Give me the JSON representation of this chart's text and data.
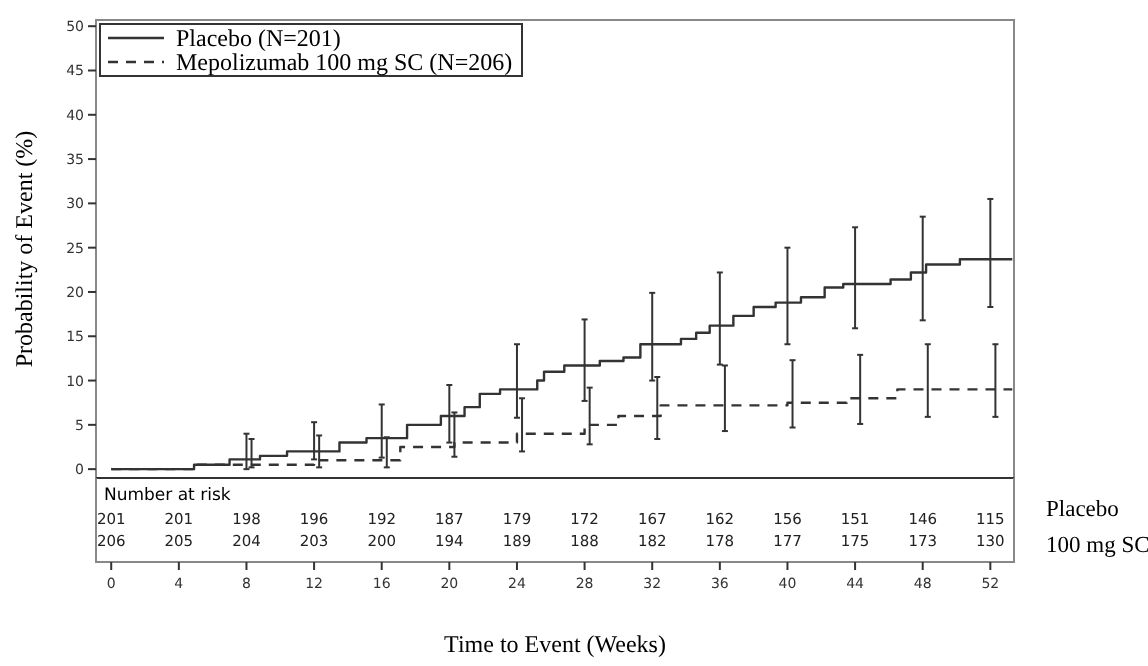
{
  "chart_data": [
    {
      "type": "step",
      "xlabel": "Time to Event (Weeks)",
      "ylabel": "Probability of Event (%)",
      "xlim": [
        -0.9,
        53.4
      ],
      "ylim": [
        -1,
        50.7
      ],
      "xticks": [
        0,
        4,
        8,
        12,
        16,
        20,
        24,
        28,
        32,
        36,
        40,
        44,
        48,
        52
      ],
      "yticks": [
        0,
        5,
        10,
        15,
        20,
        25,
        30,
        35,
        40,
        45,
        50
      ],
      "grid": false,
      "legend": "top left",
      "series": [
        {
          "name": "Placebo (N=201)",
          "color": "#333333",
          "line_style": "solid",
          "x": [
            0,
            4.9,
            7.0,
            8,
            8.8,
            10.4,
            12,
            13.5,
            15.1,
            16,
            17.5,
            19.5,
            20,
            20.9,
            21.8,
            23,
            24,
            25.2,
            25.6,
            26.8,
            28,
            28.9,
            30.3,
            31.3,
            32,
            33.7,
            34.6,
            35.4,
            36,
            36.8,
            38,
            39.3,
            40,
            40.8,
            42.2,
            43.3,
            44,
            46.1,
            47.3,
            48,
            48.2,
            50.2,
            52,
            53.3
          ],
          "values": [
            0,
            0.5,
            1.1,
            1.1,
            1.5,
            2.0,
            2.0,
            3.0,
            3.5,
            3.5,
            5.0,
            6.0,
            6.0,
            7.0,
            8.5,
            9.0,
            9.0,
            10.0,
            11.0,
            11.7,
            11.7,
            12.2,
            12.6,
            14.1,
            14.1,
            14.7,
            15.4,
            16.2,
            16.2,
            17.3,
            18.3,
            18.8,
            18.8,
            19.4,
            20.5,
            20.9,
            20.9,
            21.4,
            22.2,
            22.2,
            23.1,
            23.7,
            23.7,
            23.7
          ],
          "errors": [
            null,
            null,
            null,
            [
              0,
              4.0
            ],
            null,
            null,
            [
              1.1,
              5.3
            ],
            null,
            null,
            [
              1.3,
              7.3
            ],
            null,
            null,
            [
              3.0,
              9.5
            ],
            null,
            null,
            null,
            [
              5.8,
              14.1
            ],
            null,
            null,
            null,
            [
              7.7,
              16.9
            ],
            null,
            null,
            null,
            [
              10.0,
              19.9
            ],
            null,
            null,
            null,
            [
              11.8,
              22.2
            ],
            null,
            null,
            null,
            [
              14.1,
              25.0
            ],
            null,
            null,
            null,
            [
              15.9,
              27.3
            ],
            null,
            null,
            [
              16.8,
              28.5
            ],
            null,
            null,
            [
              18.3,
              30.5
            ],
            null
          ]
        },
        {
          "name": "Mepolizumab 100 mg SC (N=206)",
          "color": "#333333",
          "line_style": "dashed",
          "x": [
            0,
            4.9,
            8.3,
            12,
            12.3,
            16.3,
            17.1,
            20.3,
            24,
            24.3,
            28,
            28.3,
            30,
            32.3,
            32.5,
            36.3,
            40,
            40.3,
            43.5,
            44.3,
            46.5,
            48.3,
            52.3,
            53.3
          ],
          "values": [
            0,
            0.5,
            0.5,
            1.0,
            1.0,
            1.0,
            2.5,
            3.0,
            4.0,
            4.0,
            5.0,
            5.0,
            6.0,
            6.0,
            7.2,
            7.2,
            7.5,
            7.5,
            8.0,
            8.0,
            9.0,
            9.0,
            9.0,
            9.0
          ],
          "errors": [
            null,
            null,
            [
              0.2,
              3.4
            ],
            null,
            [
              0.2,
              3.8
            ],
            [
              0.2,
              3.6
            ],
            null,
            [
              1.4,
              6.4
            ],
            null,
            [
              2.0,
              8.0
            ],
            null,
            [
              2.8,
              9.2
            ],
            null,
            [
              3.4,
              10.4
            ],
            null,
            [
              4.3,
              11.7
            ],
            null,
            [
              4.7,
              12.3
            ],
            null,
            [
              5.1,
              12.9
            ],
            null,
            [
              5.9,
              14.1
            ],
            [
              5.9,
              14.1
            ],
            null
          ]
        }
      ]
    },
    {
      "type": "other",
      "title": "Number at risk",
      "categories": [
        null,
        null,
        null,
        null,
        null,
        null,
        null,
        null,
        null,
        null,
        null,
        null,
        null,
        null
      ],
      "annotations": [
        "201",
        "201",
        "198",
        "196",
        "192",
        "187",
        "179",
        "172",
        "167",
        "162",
        "156",
        "151",
        "146",
        "115",
        "206",
        "205",
        "204",
        "203",
        "200",
        "194",
        "189",
        "188",
        "182",
        "178",
        "177",
        "175",
        "173",
        "130",
        "Placebo",
        "100 mg SC"
      ]
    }
  ]
}
